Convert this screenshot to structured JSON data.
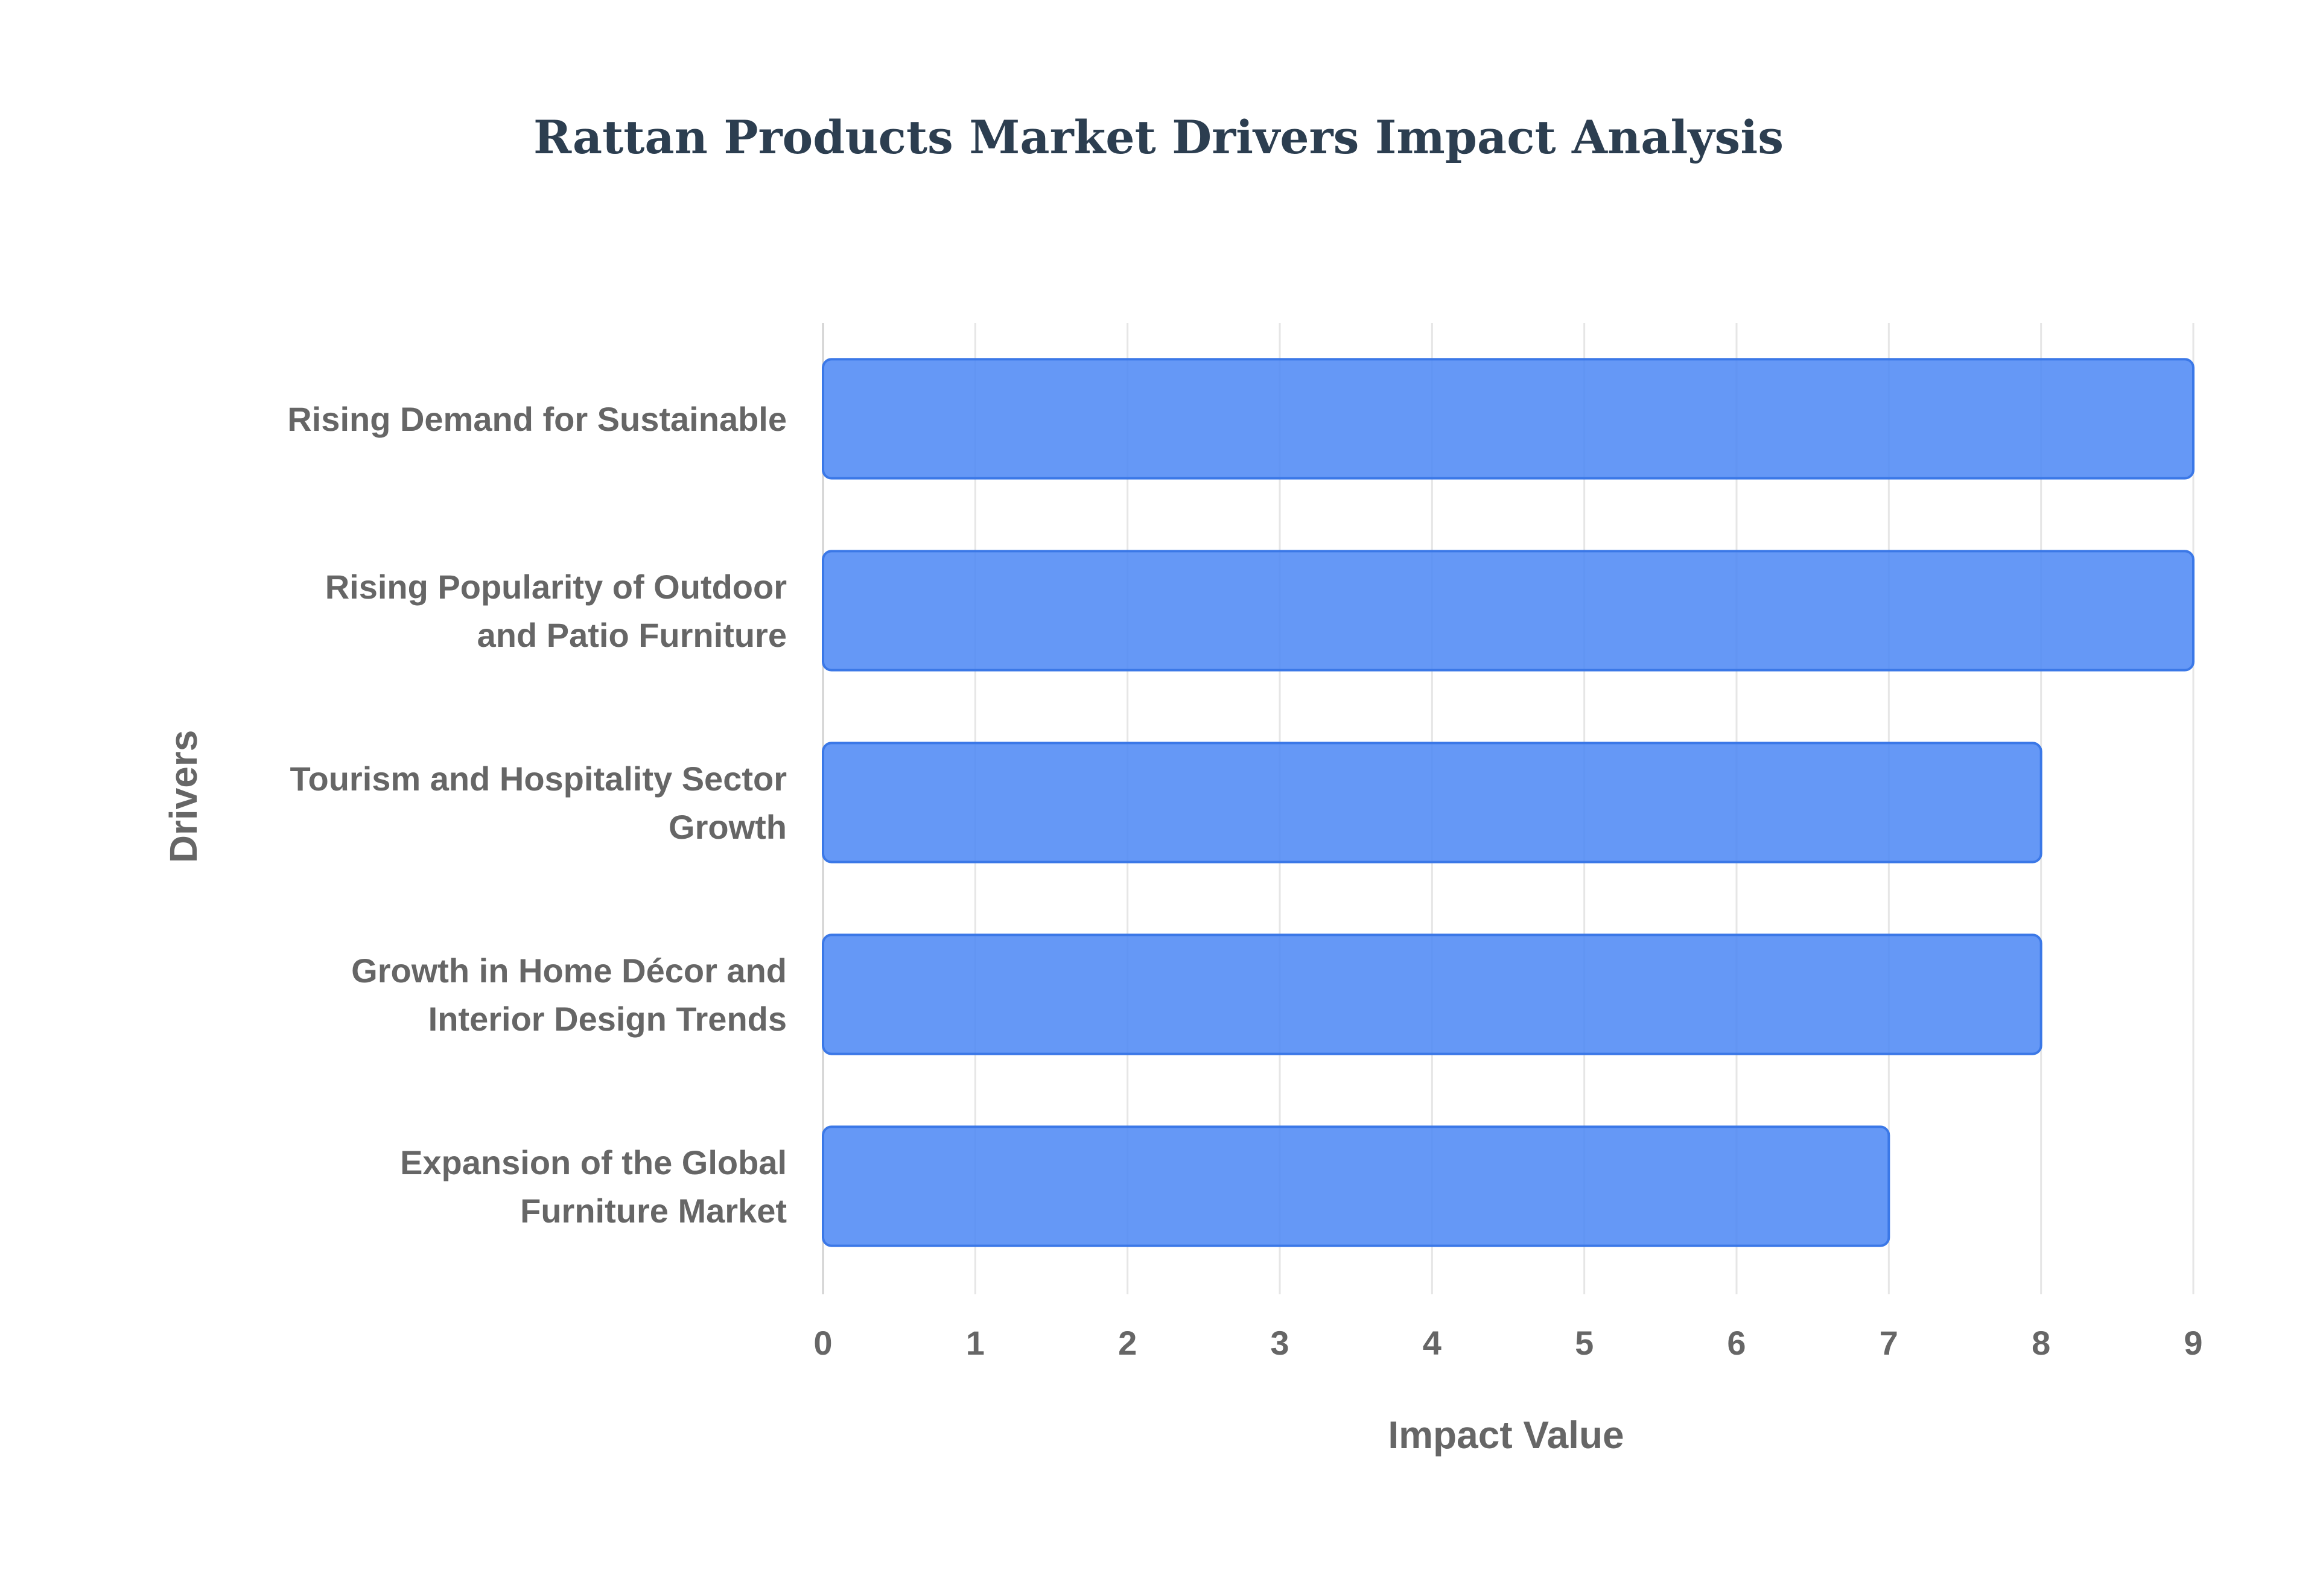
{
  "chart_data": {
    "type": "bar",
    "orientation": "horizontal",
    "title": "Rattan Products Market Drivers Impact Analysis",
    "xlabel": "Impact Value",
    "ylabel": "Drivers",
    "categories": [
      [
        "Rising Demand for Sustainable"
      ],
      [
        "Rising Popularity of Outdoor",
        "and Patio Furniture"
      ],
      [
        "Tourism and Hospitality Sector",
        "Growth"
      ],
      [
        "Growth in Home Décor and",
        "Interior Design Trends"
      ],
      [
        "Expansion of the Global",
        "Furniture Market"
      ]
    ],
    "values": [
      9,
      9,
      8,
      8,
      7
    ],
    "xlim": [
      0,
      9
    ],
    "x_ticks": [
      "0",
      "1",
      "2",
      "3",
      "4",
      "5",
      "6",
      "7",
      "8",
      "9"
    ],
    "grid": true,
    "legend": "none",
    "colors": {
      "bar_fill": "#4a86f5",
      "bar_stroke": "#3b78e7",
      "title": "#2c3e50",
      "text": "#666666",
      "grid": "#e6e6e6"
    }
  }
}
